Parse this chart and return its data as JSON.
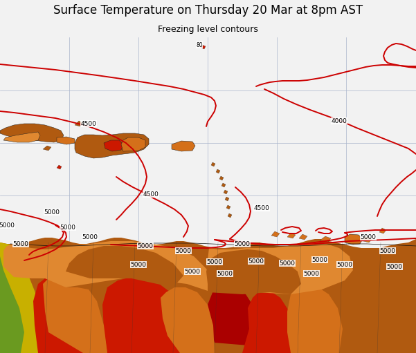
{
  "title": "Surface Temperature on Thursday 20 Mar at 8pm AST",
  "subtitle": "Freezing level contours",
  "title_fontsize": 12,
  "subtitle_fontsize": 9,
  "fig_width": 6.01,
  "fig_height": 5.11,
  "dpi": 100,
  "title_bg": "#f2f2f2",
  "map_bg": "#c8cfe8",
  "contour_color": "#cc0000",
  "contour_linewidth": 1.4,
  "label_fontsize": 6.5,
  "grid_color": "#aab5cc",
  "grid_linewidth": 0.5
}
